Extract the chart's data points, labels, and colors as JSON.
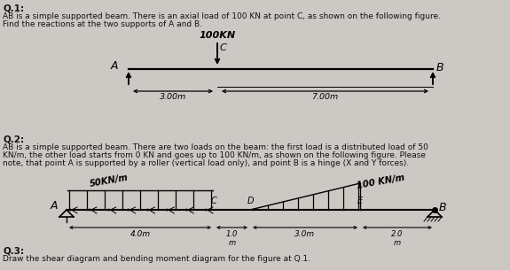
{
  "bg_color": "#ccc9c4",
  "text_color": "#111111",
  "title_q1": "Q.1:",
  "q1_text_line1": "AB is a simple supported beam. There is an axial load of 100 KN at point C, as shown on the following figure.",
  "q1_text_line2": "Find the reactions at the two supports of A and B.",
  "q1_load_label": "100KN",
  "q1_dim1": "3.00m",
  "q1_dim2": "7.00m",
  "q1_point_a": "A",
  "q1_point_b": "B",
  "q1_point_c": "C",
  "title_q2": "Q.2:",
  "q2_text_line1": "AB is a simple supported beam. There are two loads on the beam: the first load is a distributed load of 50",
  "q2_text_line2": "KN/m, the other load starts from 0 KN and goes up to 100 KN/m, as shown on the following figure. Please",
  "q2_text_line3": "note, that point A is supported by a roller (vertical load only), and point B is a hinge (X and Y forces).",
  "q2_load1": "50KN/m",
  "q2_load2": "100 KN/m",
  "q2_point_a": "A",
  "q2_point_b": "B",
  "q2_point_c": "C",
  "q2_point_d": "D",
  "q2_point_e": "E",
  "q2_dim1": "4.0m",
  "q2_dim2": "1.0\nm",
  "q2_dim3": "3.0m",
  "q2_dim4": "2.0\nm",
  "title_q3": "Q.3:",
  "q3_text": "Draw the shear diagram and bending moment diagram for the figure at Q.1."
}
